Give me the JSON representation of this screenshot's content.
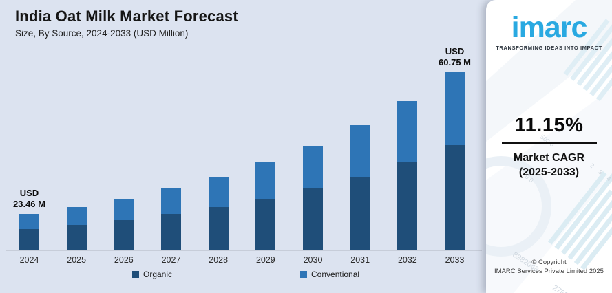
{
  "header": {
    "title": "India Oat Milk Market Forecast",
    "subtitle": "Size, By Source, 2024-2033 (USD Million)"
  },
  "chart_data": {
    "type": "bar",
    "stacked": true,
    "unit": "USD Million",
    "title": "India Oat Milk Market Forecast",
    "xlabel": "Year",
    "ylabel": "Market Size (USD Million)",
    "grid": false,
    "legend_position": "bottom",
    "categories": [
      "2024",
      "2025",
      "2026",
      "2027",
      "2028",
      "2029",
      "2030",
      "2031",
      "2032",
      "2033"
    ],
    "series": [
      {
        "name": "Organic",
        "color": "#1F4E79",
        "values": [
          13.84,
          15.39,
          17.1,
          19.01,
          21.13,
          23.48,
          26.1,
          29.01,
          32.25,
          35.84
        ]
      },
      {
        "name": "Conventional",
        "color": "#2E75B6",
        "values": [
          9.62,
          10.69,
          11.88,
          13.21,
          14.68,
          16.32,
          18.14,
          20.16,
          22.41,
          24.91
        ]
      }
    ],
    "totals": [
      23.46,
      26.08,
      28.98,
      32.22,
      35.81,
      39.8,
      44.24,
      49.17,
      54.66,
      60.75
    ],
    "annotations": [
      {
        "category": "2024",
        "line1": "USD",
        "line2": "23.46 M"
      },
      {
        "category": "2033",
        "line1": "USD",
        "line2": "60.75 M"
      }
    ]
  },
  "panel": {
    "logo_text": "imarc",
    "tagline": "TRANSFORMING IDEAS INTO IMPACT",
    "logo_color": "#29A9E1",
    "cagr_value": "11.15%",
    "cagr_label_line1": "Market CAGR",
    "cagr_label_line2": "(2025-2033)",
    "copyright_line1": "© Copyright",
    "copyright_line2": "IMARC Services Private Limited 2025",
    "watermark_labels": [
      "500.0",
      "0.0",
      "1 2 3 4",
      "8982048",
      "2768"
    ]
  },
  "colors": {
    "chart_background": "#DCE3F0",
    "organic": "#1F4E79",
    "conventional": "#2E75B6",
    "logo_blue": "#29A9E1",
    "divider_black": "#101010"
  }
}
